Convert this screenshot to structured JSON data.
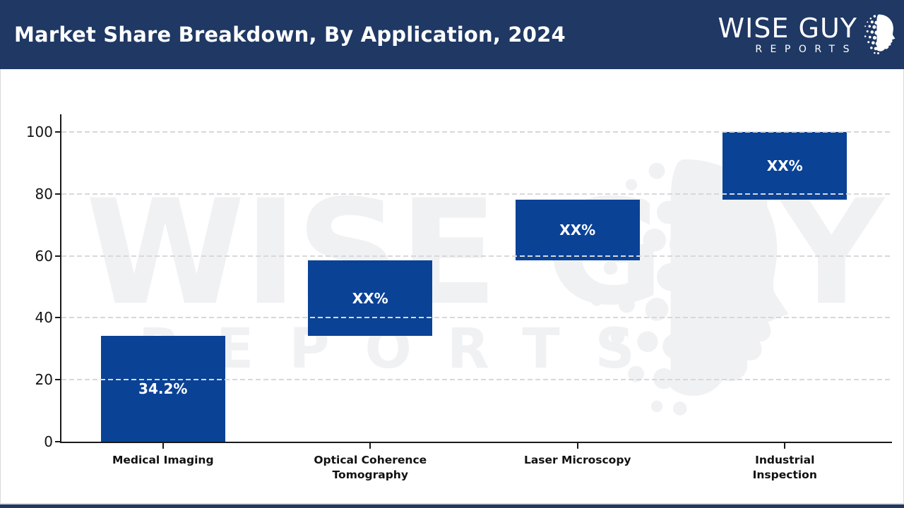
{
  "header": {
    "title": "Market Share Breakdown, By Application, 2024",
    "bg_color": "#1f3864",
    "logo": {
      "line1": "WISE GUY",
      "line2": "REPORTS"
    }
  },
  "watermark": {
    "line1": "WISE GUY",
    "line2": "REPORTS"
  },
  "chart_data": {
    "type": "bar",
    "subtype": "waterfall",
    "title": "Market Share Breakdown, By Application, 2024",
    "categories": [
      "Medical Imaging",
      "Optical Coherence Tomography",
      "Laser Microscopy",
      "Industrial Inspection"
    ],
    "category_label_lines": [
      [
        "Medical Imaging"
      ],
      [
        "Optical Coherence",
        "Tomography"
      ],
      [
        "Laser Microscopy"
      ],
      [
        "Industrial",
        "Inspection"
      ]
    ],
    "segments": [
      {
        "category": "Medical Imaging",
        "start": 0,
        "end": 34.2,
        "label": "34.2%"
      },
      {
        "category": "Optical Coherence Tomography",
        "start": 34.2,
        "end": 58.5,
        "label": "XX%"
      },
      {
        "category": "Laser Microscopy",
        "start": 58.5,
        "end": 78.1,
        "label": "XX%"
      },
      {
        "category": "Industrial Inspection",
        "start": 78.1,
        "end": 100,
        "label": "XX%"
      }
    ],
    "increments": [
      34.2,
      24.3,
      19.6,
      21.9
    ],
    "xlabel": "",
    "ylabel": "",
    "ylim": [
      0,
      100
    ],
    "yticks": [
      0,
      20,
      40,
      60,
      80,
      100
    ],
    "grid": "horizontal-dashed",
    "legend": "none",
    "bar_color": "#0a4296",
    "bar_label_color": "#ffffff",
    "axis_color": "#1a1a1a",
    "gridline_color": "#d8d8d8"
  }
}
